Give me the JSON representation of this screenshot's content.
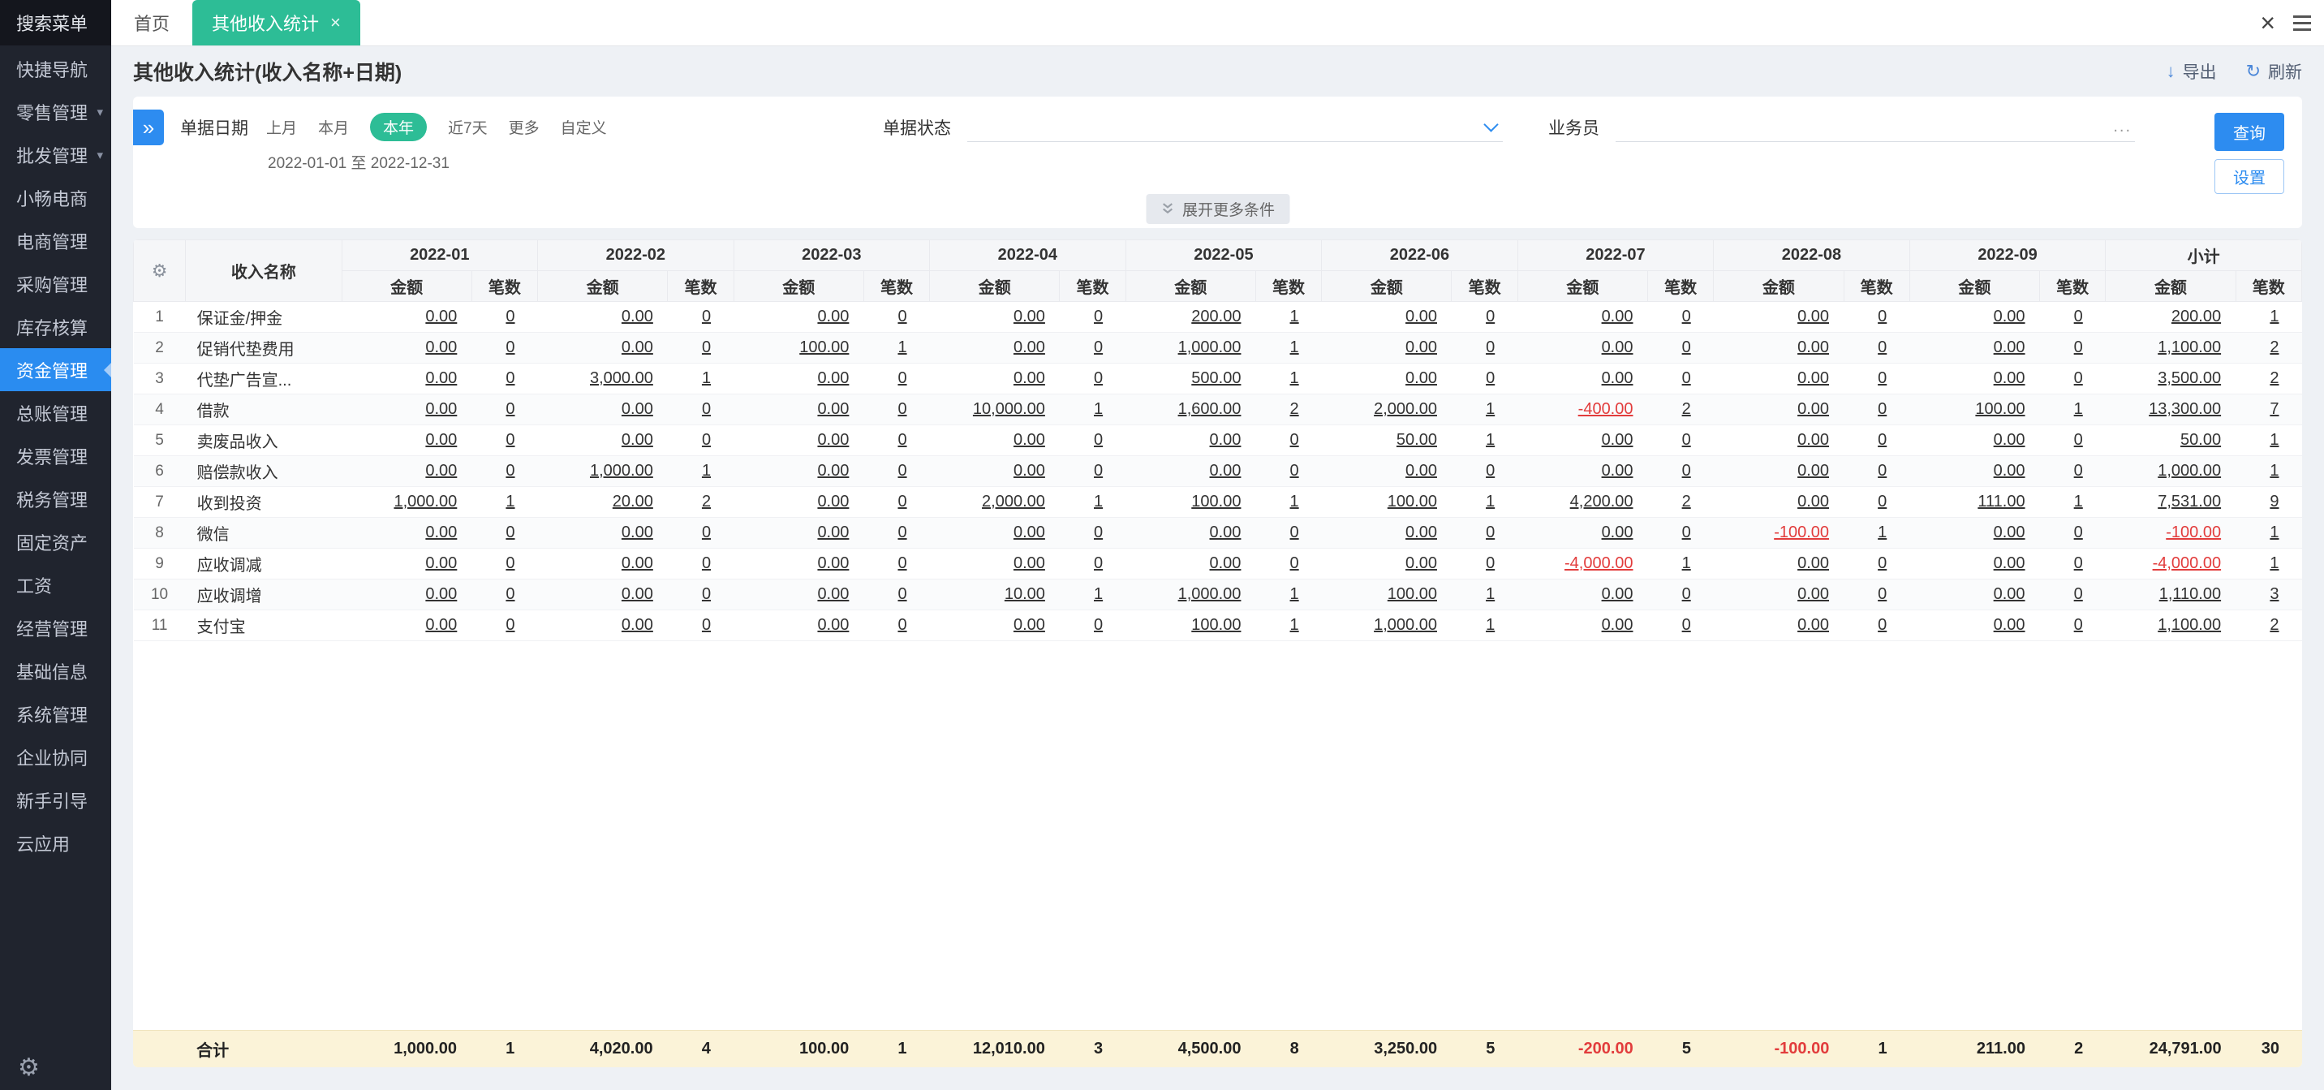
{
  "colors": {
    "accent_blue": "#2d8cf0",
    "accent_green": "#2dbd96",
    "negative_red": "#e23c3c",
    "totals_row_bg": "#fbf3d8",
    "sidebar_bg": "#20242e",
    "sidebar_active_bg": "#2a8cf0"
  },
  "sidebar": {
    "search_label": "搜索菜单",
    "items": [
      {
        "label": "快捷导航",
        "arrow": false,
        "active": false
      },
      {
        "label": "零售管理",
        "arrow": true,
        "active": false
      },
      {
        "label": "批发管理",
        "arrow": true,
        "active": false
      },
      {
        "label": "小畅电商",
        "arrow": false,
        "active": false
      },
      {
        "label": "电商管理",
        "arrow": false,
        "active": false
      },
      {
        "label": "采购管理",
        "arrow": false,
        "active": false
      },
      {
        "label": "库存核算",
        "arrow": false,
        "active": false
      },
      {
        "label": "资金管理",
        "arrow": false,
        "active": true
      },
      {
        "label": "总账管理",
        "arrow": false,
        "active": false
      },
      {
        "label": "发票管理",
        "arrow": false,
        "active": false
      },
      {
        "label": "税务管理",
        "arrow": false,
        "active": false
      },
      {
        "label": "固定资产",
        "arrow": false,
        "active": false
      },
      {
        "label": "工资",
        "arrow": false,
        "active": false
      },
      {
        "label": "经营管理",
        "arrow": false,
        "active": false
      },
      {
        "label": "基础信息",
        "arrow": false,
        "active": false
      },
      {
        "label": "系统管理",
        "arrow": false,
        "active": false
      },
      {
        "label": "企业协同",
        "arrow": false,
        "active": false
      },
      {
        "label": "新手引导",
        "arrow": false,
        "active": false
      },
      {
        "label": "云应用",
        "arrow": false,
        "active": false
      }
    ]
  },
  "tabs": [
    {
      "label": "首页",
      "active": false
    },
    {
      "label": "其他收入统计",
      "active": true,
      "close": "×"
    }
  ],
  "window": {
    "close": "×"
  },
  "page": {
    "title": "其他收入统计(收入名称+日期)",
    "export_label": "导出",
    "refresh_label": "刷新"
  },
  "filters": {
    "date_label": "单据日期",
    "quick_ranges": [
      "上月",
      "本月",
      "本年",
      "近7天",
      "更多",
      "自定义"
    ],
    "selected_range": "本年",
    "date_range": "2022-01-01 至 2022-12-31",
    "status_label": "单据状态",
    "salesman_label": "业务员",
    "ellipsis": "...",
    "query_label": "查询",
    "settings_label": "设置",
    "expand_label": "展开更多条件",
    "collapse_glyph": "»"
  },
  "table": {
    "name_header": "收入名称",
    "amount_header": "金额",
    "count_header": "笔数",
    "groups": [
      "2022-01",
      "2022-02",
      "2022-03",
      "2022-04",
      "2022-05",
      "2022-06",
      "2022-07",
      "2022-08",
      "2022-09",
      "小计"
    ],
    "rows": [
      {
        "index": "1",
        "name": "保证金/押金",
        "cells": [
          [
            "0.00",
            "0"
          ],
          [
            "0.00",
            "0"
          ],
          [
            "0.00",
            "0"
          ],
          [
            "0.00",
            "0"
          ],
          [
            "200.00",
            "1"
          ],
          [
            "0.00",
            "0"
          ],
          [
            "0.00",
            "0"
          ],
          [
            "0.00",
            "0"
          ],
          [
            "0.00",
            "0"
          ],
          [
            "200.00",
            "1"
          ]
        ]
      },
      {
        "index": "2",
        "name": "促销代垫费用",
        "cells": [
          [
            "0.00",
            "0"
          ],
          [
            "0.00",
            "0"
          ],
          [
            "100.00",
            "1"
          ],
          [
            "0.00",
            "0"
          ],
          [
            "1,000.00",
            "1"
          ],
          [
            "0.00",
            "0"
          ],
          [
            "0.00",
            "0"
          ],
          [
            "0.00",
            "0"
          ],
          [
            "0.00",
            "0"
          ],
          [
            "1,100.00",
            "2"
          ]
        ]
      },
      {
        "index": "3",
        "name": "代垫广告宣...",
        "cells": [
          [
            "0.00",
            "0"
          ],
          [
            "3,000.00",
            "1"
          ],
          [
            "0.00",
            "0"
          ],
          [
            "0.00",
            "0"
          ],
          [
            "500.00",
            "1"
          ],
          [
            "0.00",
            "0"
          ],
          [
            "0.00",
            "0"
          ],
          [
            "0.00",
            "0"
          ],
          [
            "0.00",
            "0"
          ],
          [
            "3,500.00",
            "2"
          ]
        ]
      },
      {
        "index": "4",
        "name": "借款",
        "cells": [
          [
            "0.00",
            "0"
          ],
          [
            "0.00",
            "0"
          ],
          [
            "0.00",
            "0"
          ],
          [
            "10,000.00",
            "1"
          ],
          [
            "1,600.00",
            "2"
          ],
          [
            "2,000.00",
            "1"
          ],
          [
            "-400.00",
            "2"
          ],
          [
            "0.00",
            "0"
          ],
          [
            "100.00",
            "1"
          ],
          [
            "13,300.00",
            "7"
          ]
        ]
      },
      {
        "index": "5",
        "name": "卖废品收入",
        "cells": [
          [
            "0.00",
            "0"
          ],
          [
            "0.00",
            "0"
          ],
          [
            "0.00",
            "0"
          ],
          [
            "0.00",
            "0"
          ],
          [
            "0.00",
            "0"
          ],
          [
            "50.00",
            "1"
          ],
          [
            "0.00",
            "0"
          ],
          [
            "0.00",
            "0"
          ],
          [
            "0.00",
            "0"
          ],
          [
            "50.00",
            "1"
          ]
        ]
      },
      {
        "index": "6",
        "name": "赔偿款收入",
        "cells": [
          [
            "0.00",
            "0"
          ],
          [
            "1,000.00",
            "1"
          ],
          [
            "0.00",
            "0"
          ],
          [
            "0.00",
            "0"
          ],
          [
            "0.00",
            "0"
          ],
          [
            "0.00",
            "0"
          ],
          [
            "0.00",
            "0"
          ],
          [
            "0.00",
            "0"
          ],
          [
            "0.00",
            "0"
          ],
          [
            "1,000.00",
            "1"
          ]
        ]
      },
      {
        "index": "7",
        "name": "收到投资",
        "cells": [
          [
            "1,000.00",
            "1"
          ],
          [
            "20.00",
            "2"
          ],
          [
            "0.00",
            "0"
          ],
          [
            "2,000.00",
            "1"
          ],
          [
            "100.00",
            "1"
          ],
          [
            "100.00",
            "1"
          ],
          [
            "4,200.00",
            "2"
          ],
          [
            "0.00",
            "0"
          ],
          [
            "111.00",
            "1"
          ],
          [
            "7,531.00",
            "9"
          ]
        ]
      },
      {
        "index": "8",
        "name": "微信",
        "cells": [
          [
            "0.00",
            "0"
          ],
          [
            "0.00",
            "0"
          ],
          [
            "0.00",
            "0"
          ],
          [
            "0.00",
            "0"
          ],
          [
            "0.00",
            "0"
          ],
          [
            "0.00",
            "0"
          ],
          [
            "0.00",
            "0"
          ],
          [
            "-100.00",
            "1"
          ],
          [
            "0.00",
            "0"
          ],
          [
            "-100.00",
            "1"
          ]
        ]
      },
      {
        "index": "9",
        "name": "应收调减",
        "cells": [
          [
            "0.00",
            "0"
          ],
          [
            "0.00",
            "0"
          ],
          [
            "0.00",
            "0"
          ],
          [
            "0.00",
            "0"
          ],
          [
            "0.00",
            "0"
          ],
          [
            "0.00",
            "0"
          ],
          [
            "-4,000.00",
            "1"
          ],
          [
            "0.00",
            "0"
          ],
          [
            "0.00",
            "0"
          ],
          [
            "-4,000.00",
            "1"
          ]
        ]
      },
      {
        "index": "10",
        "name": "应收调增",
        "cells": [
          [
            "0.00",
            "0"
          ],
          [
            "0.00",
            "0"
          ],
          [
            "0.00",
            "0"
          ],
          [
            "10.00",
            "1"
          ],
          [
            "1,000.00",
            "1"
          ],
          [
            "100.00",
            "1"
          ],
          [
            "0.00",
            "0"
          ],
          [
            "0.00",
            "0"
          ],
          [
            "0.00",
            "0"
          ],
          [
            "1,110.00",
            "3"
          ]
        ]
      },
      {
        "index": "11",
        "name": "支付宝",
        "cells": [
          [
            "0.00",
            "0"
          ],
          [
            "0.00",
            "0"
          ],
          [
            "0.00",
            "0"
          ],
          [
            "0.00",
            "0"
          ],
          [
            "100.00",
            "1"
          ],
          [
            "1,000.00",
            "1"
          ],
          [
            "0.00",
            "0"
          ],
          [
            "0.00",
            "0"
          ],
          [
            "0.00",
            "0"
          ],
          [
            "1,100.00",
            "2"
          ]
        ]
      }
    ],
    "total_label": "合计",
    "totals": [
      [
        "1,000.00",
        "1"
      ],
      [
        "4,020.00",
        "4"
      ],
      [
        "100.00",
        "1"
      ],
      [
        "12,010.00",
        "3"
      ],
      [
        "4,500.00",
        "8"
      ],
      [
        "3,250.00",
        "5"
      ],
      [
        "-200.00",
        "5"
      ],
      [
        "-100.00",
        "1"
      ],
      [
        "211.00",
        "2"
      ],
      [
        "24,791.00",
        "30"
      ]
    ]
  }
}
